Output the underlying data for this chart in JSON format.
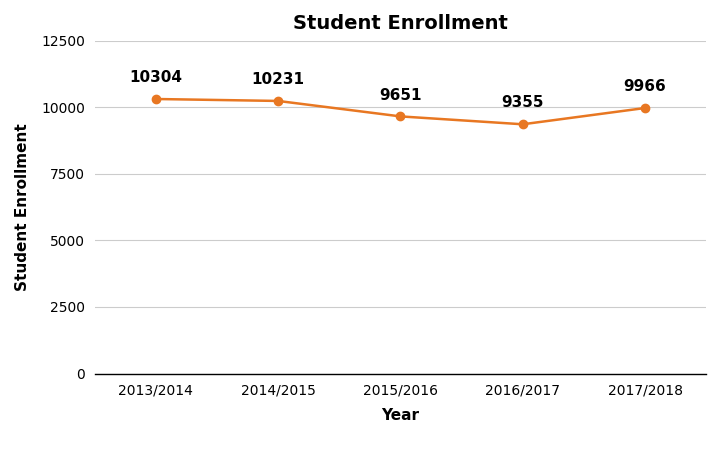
{
  "title": "Student Enrollment",
  "xlabel": "Year",
  "ylabel": "Student Enrollment",
  "years": [
    "2013/2014",
    "2014/2015",
    "2015/2016",
    "2016/2017",
    "2017/2018"
  ],
  "values": [
    10304,
    10231,
    9651,
    9355,
    9966
  ],
  "line_color": "#E87722",
  "marker_color": "#E87722",
  "ylim": [
    0,
    12500
  ],
  "yticks": [
    0,
    2500,
    5000,
    7500,
    10000,
    12500
  ],
  "background_color": "#ffffff",
  "grid_color": "#cccccc",
  "title_fontsize": 14,
  "label_fontsize": 11,
  "tick_fontsize": 10,
  "annotation_fontsize": 11
}
